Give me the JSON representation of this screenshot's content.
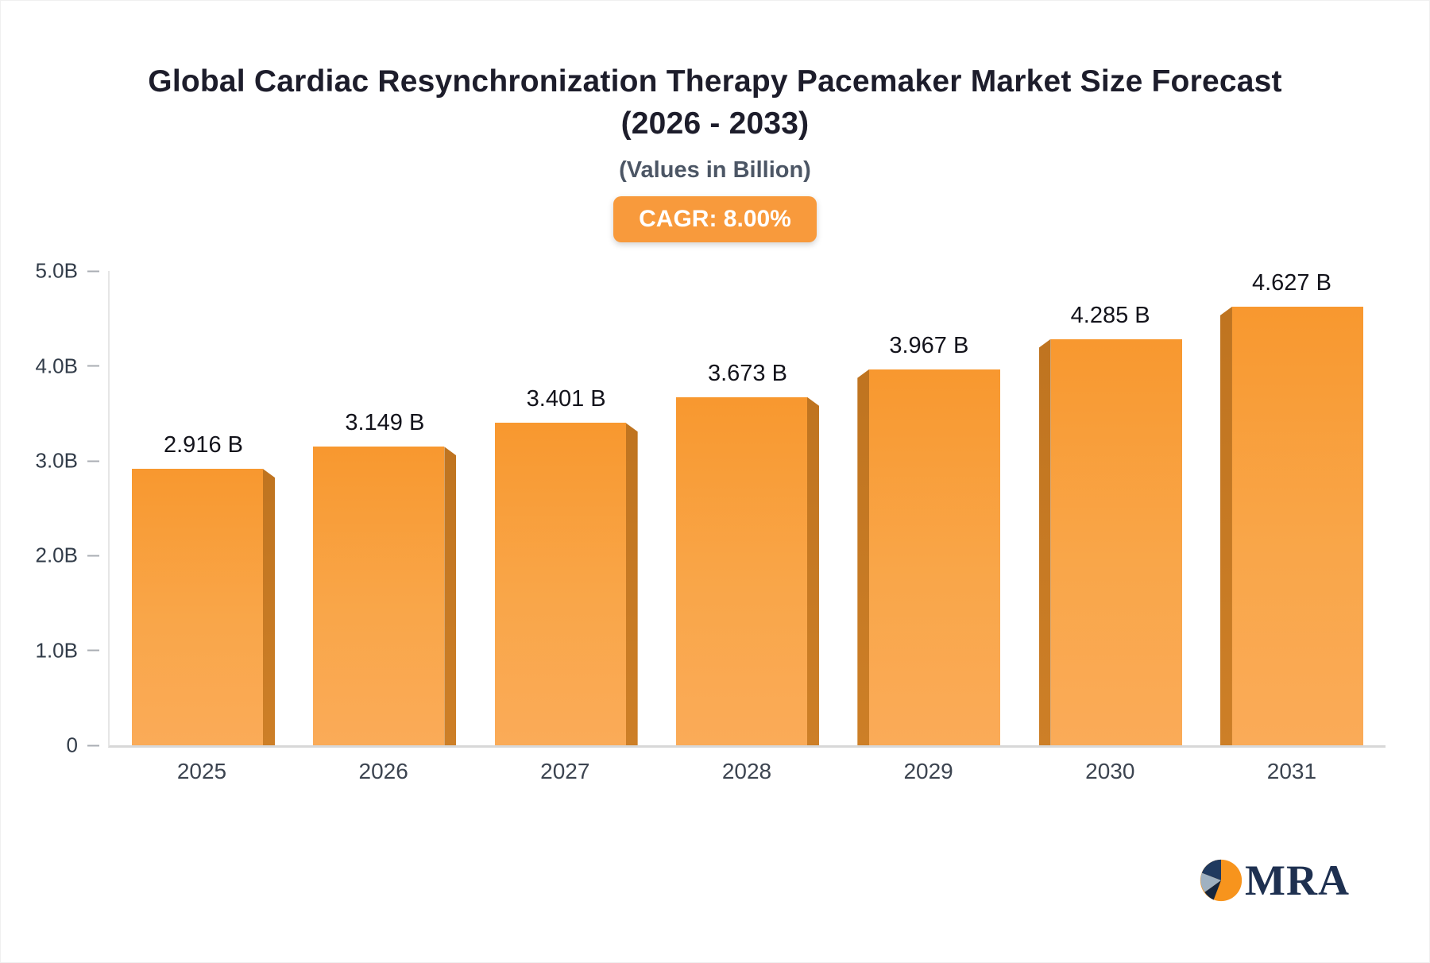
{
  "title": "Global Cardiac Resynchronization Therapy Pacemaker Market Size Forecast (2026 - 2033)",
  "subtitle": "(Values in Billion)",
  "badge": "CAGR: 8.00%",
  "logo": {
    "text": "MRA"
  },
  "colors": {
    "bar_face_top": "#f8982f",
    "bar_face_bottom": "#faab58",
    "bar_side": "#c6791f",
    "badge_bg": "#f89a3c",
    "title_text": "#1d1d2b",
    "axis_text": "#3c4450",
    "logo_navy": "#1e3050"
  },
  "chart_data": {
    "type": "bar",
    "title": "Global Cardiac Resynchronization Therapy Pacemaker Market Size Forecast (2026 - 2033)",
    "subtitle": "(Values in Billion)",
    "cagr_label": "CAGR: 8.00%",
    "categories": [
      "2025",
      "2026",
      "2027",
      "2028",
      "2029",
      "2030",
      "2031"
    ],
    "values": [
      2.916,
      3.149,
      3.401,
      3.673,
      3.967,
      4.285,
      4.627
    ],
    "value_labels": [
      "2.916 B",
      "3.149 B",
      "3.401 B",
      "3.673 B",
      "3.967 B",
      "4.285 B",
      "4.627 B"
    ],
    "xlabel": "",
    "ylabel": "",
    "ylim": [
      0,
      5
    ],
    "yticks": [
      {
        "value": 5,
        "label": "5.0B"
      },
      {
        "value": 4,
        "label": "4.0B"
      },
      {
        "value": 3,
        "label": "3.0B"
      },
      {
        "value": 2,
        "label": "2.0B"
      },
      {
        "value": 1,
        "label": "1.0B"
      },
      {
        "value": 0,
        "label": "0"
      }
    ],
    "grid": false,
    "legend": false
  }
}
